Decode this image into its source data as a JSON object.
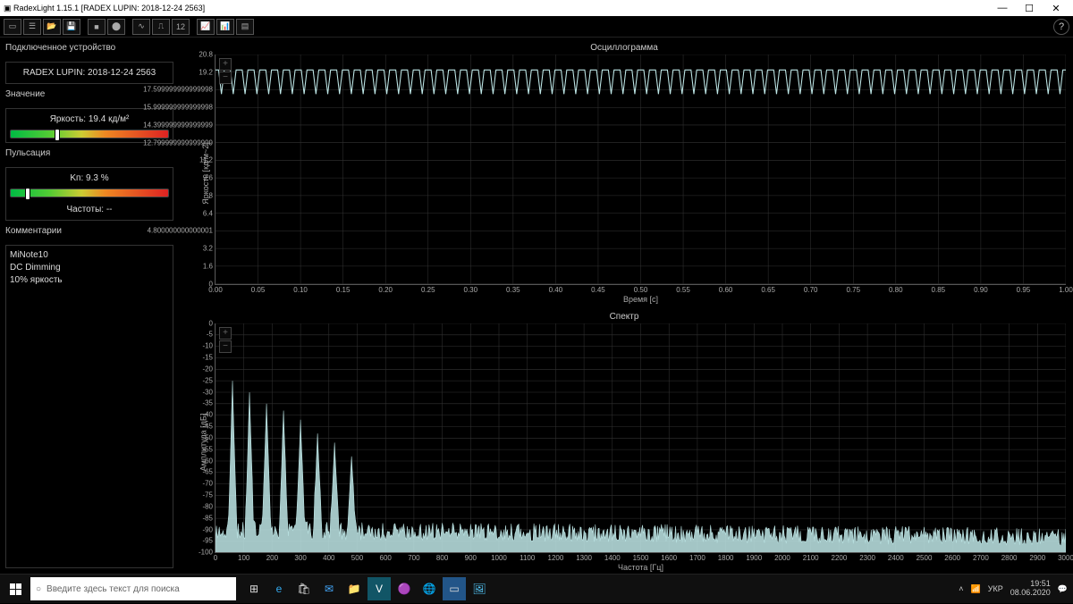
{
  "window": {
    "title": "RadexLight 1.15.1 [RADEX LUPIN: 2018-12-24 2563]"
  },
  "side": {
    "device_head": "Подключенное устройство",
    "device_val": "RADEX LUPIN: 2018-12-24 2563",
    "value_head": "Значение",
    "brightness_label": "Яркость: 19.4 кд/м²",
    "brightness_pct": 28,
    "puls_head": "Пульсация",
    "puls_label": "Kп: 9.3 %",
    "puls_pct": 9,
    "freq_label": "Частоты: --",
    "comments_head": "Комментарии",
    "comments": {
      "l1": "MiNote10",
      "l2": "DC Dimming",
      "l3": "10% яркость"
    }
  },
  "gauge_gradient": "linear-gradient(90deg,#0b4 0%,#5c3 25%,#cc3 45%,#e82 60%,#d22 100%)",
  "osc": {
    "title": "Осциллограмма",
    "ylabel": "Яркость [кд/м~2]",
    "xlabel": "Время [с]",
    "ymin": 0.0,
    "ymax": 20.8,
    "ystep": 1.6,
    "xmin": 0.0,
    "xmax": 1.0,
    "xstep": 0.05,
    "trace_color": "#bfe8e8",
    "baseline": 19.4,
    "dip_depth": 2.2,
    "dip_count": 72,
    "grid_color": "#333333",
    "bg": "#000000"
  },
  "spec": {
    "title": "Спектр",
    "ylabel": "Амплитуда [дБ]",
    "xlabel": "Частота [Гц]",
    "ymin": -100,
    "ymax": 0,
    "ystep": 5,
    "xmin": 0,
    "xmax": 3000,
    "xstep": 100,
    "trace_color": "#bfe8e8",
    "peak_freqs": [
      60,
      120,
      180,
      240,
      300,
      360,
      420,
      480
    ],
    "peak_db": [
      -25,
      -30,
      -35,
      -38,
      -42,
      -48,
      -52,
      -58
    ],
    "noise_floor_db": -90,
    "noise_jitter_db": 8,
    "grid_color": "#333333",
    "bg": "#000000"
  },
  "taskbar": {
    "search_placeholder": "Введите здесь текст для поиска",
    "lang": "УКР",
    "time": "19:51",
    "date": "08.06.2020"
  }
}
